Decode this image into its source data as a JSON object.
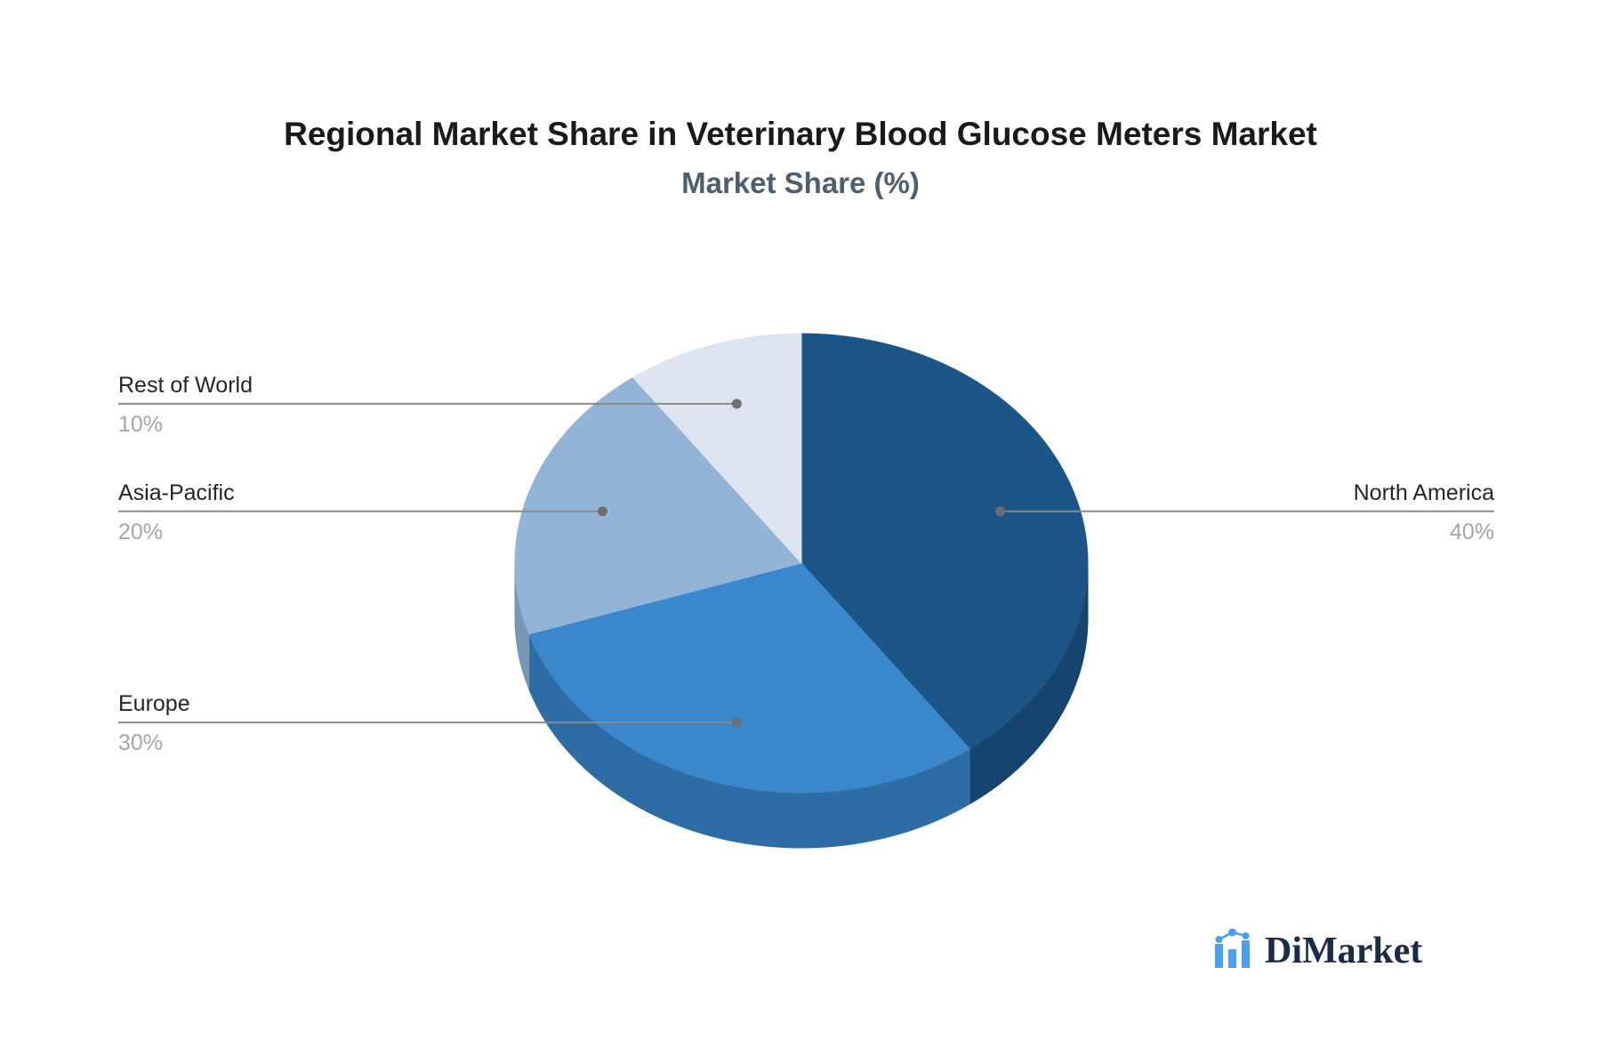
{
  "page": {
    "background": "#ffffff"
  },
  "header": {
    "title": "Regional Market Share in Veterinary Blood Glucose Meters Market",
    "subtitle": "Market Share (%)"
  },
  "brand": {
    "name": "DiMarket",
    "icon": "bar-line-chart-icon",
    "text_color": "#1b2a45",
    "icon_color": "#47a0f3"
  },
  "style": {
    "title_color": "#1a1a1a",
    "subtitle_color": "#4e5e6e",
    "label_color": "#262626",
    "value_color": "#a6a6a6",
    "leader_line_color": "#8a8a8a",
    "leader_dot_color": "#6f6f6f",
    "background": "#ffffff"
  },
  "chart_data": {
    "type": "pie",
    "title": "Regional Market Share in Veterinary Blood Glucose Meters Market",
    "subtitle": "Market Share (%)",
    "unit": "%",
    "start_angle_deg": 0,
    "direction": "clockwise",
    "style_3d": true,
    "legend": "none",
    "data_labels": "leader-lines",
    "slices": [
      {
        "label": "North America",
        "value": 40,
        "display_value": "40%",
        "color": "#1c5687",
        "side_color": "#15456e",
        "label_side": "right"
      },
      {
        "label": "Europe",
        "value": 30,
        "display_value": "30%",
        "color": "#3b87cb",
        "side_color": "#2e6ca6",
        "label_side": "left"
      },
      {
        "label": "Asia-Pacific",
        "value": 20,
        "display_value": "20%",
        "color": "#93b4d7",
        "side_color": "#7a96b6",
        "label_side": "left"
      },
      {
        "label": "Rest of World",
        "value": 10,
        "display_value": "10%",
        "color": "#dde4ef",
        "side_color": "#c2cbd9",
        "label_side": "left"
      }
    ]
  }
}
